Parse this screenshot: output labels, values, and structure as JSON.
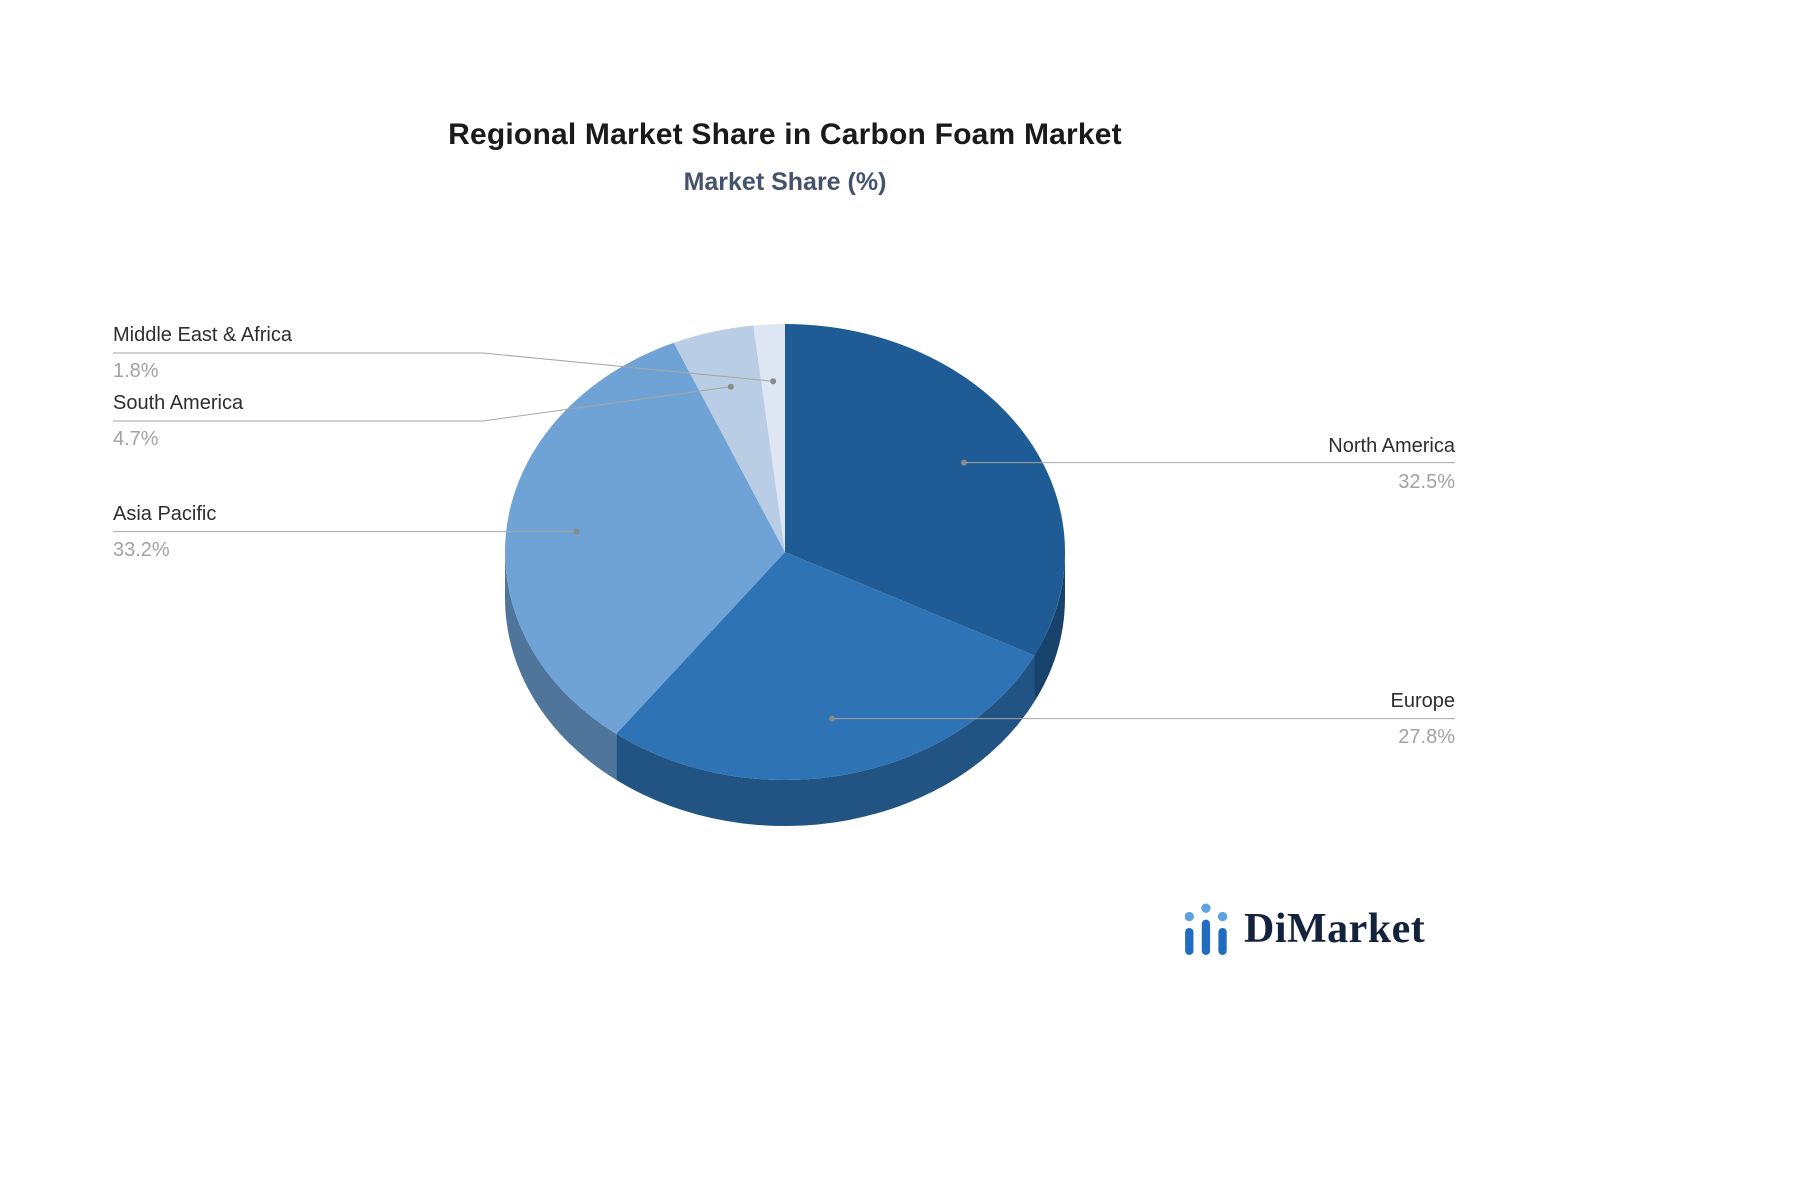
{
  "title": "Regional Market Share in Carbon Foam Market",
  "subtitle": "Market Share (%)",
  "brand": {
    "name": "DiMarket"
  },
  "chart_data": {
    "type": "pie",
    "title": "Regional Market Share in Carbon Foam Market",
    "subtitle": "Market Share (%)",
    "unit": "%",
    "style": "3d-pie",
    "direction": "clockwise",
    "start_angle_deg": 0,
    "legend": "none (outside labels with leader lines)",
    "slices": [
      {
        "label": "North America",
        "value": 32.5,
        "display": "32.5%",
        "color": "#1f5b94",
        "label_side": "right"
      },
      {
        "label": "Europe",
        "value": 27.8,
        "display": "27.8%",
        "color": "#2e74b5",
        "label_side": "right"
      },
      {
        "label": "Asia Pacific",
        "value": 33.2,
        "display": "33.2%",
        "color": "#6fa3d6",
        "label_side": "left"
      },
      {
        "label": "South America",
        "value": 4.7,
        "display": "4.7%",
        "color": "#b9cde4",
        "label_side": "left"
      },
      {
        "label": "Middle East & Africa",
        "value": 1.8,
        "display": "1.8%",
        "color": "#dde6f2",
        "label_side": "left"
      }
    ]
  }
}
